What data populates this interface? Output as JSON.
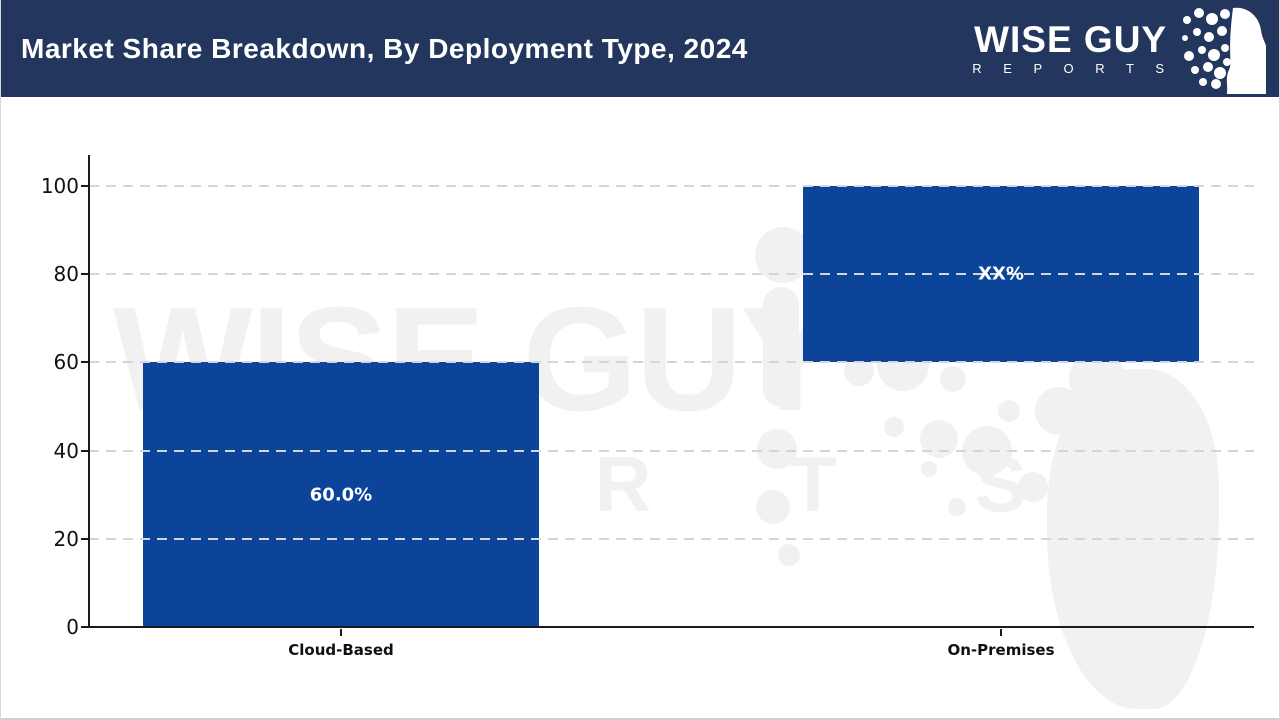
{
  "header": {
    "title": "Market Share Breakdown, By Deployment Type, 2024",
    "logo": {
      "line1": "WISE GUY",
      "line2": "R E P O R T S"
    }
  },
  "watermark": {
    "line1": "WISE GUY",
    "line2": "R T S"
  },
  "colors": {
    "header_bg": "#22365e",
    "bar": "#0b4499",
    "gridline": "#d2d6dc",
    "axis": "#1a1a1a",
    "watermark": "#f1f1f1",
    "title_text": "#ffffff"
  },
  "chart_data": {
    "type": "bar",
    "title": "Market Share Breakdown, By Deployment Type, 2024",
    "categories": [
      "Cloud-Based",
      "On-Premises"
    ],
    "series": [
      {
        "name": "Market Share",
        "values": [
          60,
          40
        ]
      }
    ],
    "segments": [
      {
        "category": "Cloud-Based",
        "start": 0,
        "end": 60,
        "label": "60.0%"
      },
      {
        "category": "On-Premises",
        "start": 60,
        "end": 100,
        "label": "XX%"
      }
    ],
    "xlabel": "",
    "ylabel": "",
    "ylim": [
      0,
      100
    ],
    "yticks": [
      0,
      20,
      40,
      60,
      80,
      100
    ],
    "grid": "horizontal dashed, drawn over bars",
    "legend": "none",
    "style_note": "waterfall-style: On-Premises bar floats from 60 to 100; labels inside bars in white bold"
  }
}
